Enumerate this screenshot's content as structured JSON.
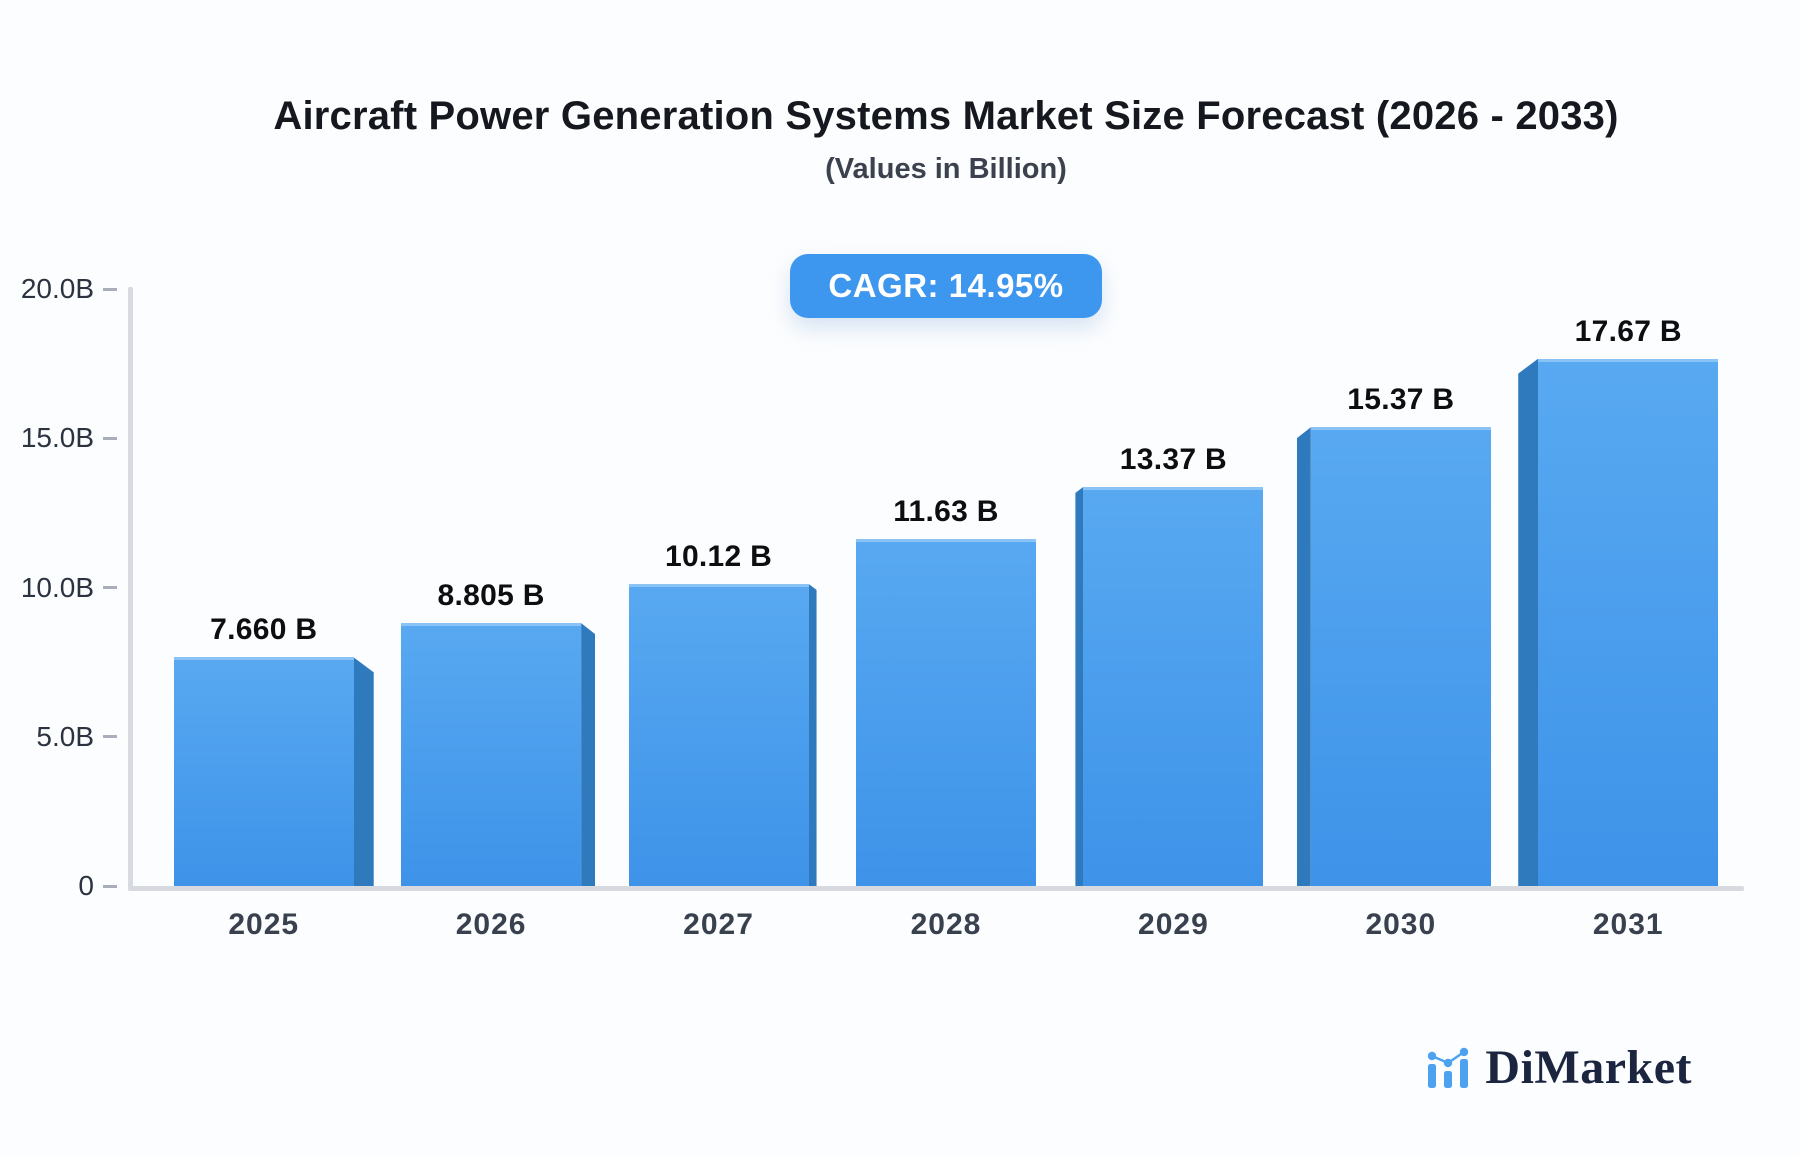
{
  "header": {
    "title": "Aircraft Power Generation Systems Market Size Forecast (2026 - 2033)",
    "subtitle": "(Values in Billion)"
  },
  "badge": {
    "label": "CAGR: 14.95%"
  },
  "chart_data": {
    "type": "bar",
    "title": "Aircraft Power Generation Systems Market Size Forecast (2026 - 2033)",
    "subtitle": "(Values in Billion)",
    "categories": [
      "2025",
      "2026",
      "2027",
      "2028",
      "2029",
      "2030",
      "2031"
    ],
    "values": [
      7.66,
      8.805,
      10.12,
      11.63,
      13.37,
      15.37,
      17.67
    ],
    "value_labels": [
      "7.660 B",
      "8.805 B",
      "10.12 B",
      "11.63 B",
      "13.37 B",
      "15.37 B",
      "17.67 B"
    ],
    "xlabel": "",
    "ylabel": "",
    "ylim": [
      0,
      20
    ],
    "ytick_labels": [
      "20.0B",
      "15.0B",
      "10.0B",
      "5.0B",
      "0"
    ],
    "ytick_values": [
      20,
      15,
      10,
      5,
      0
    ],
    "grid": false,
    "legend": false,
    "annotation": "CAGR: 14.95%"
  },
  "logo": {
    "text": "DiMarket",
    "icon": "mini-bar-chart-icon"
  },
  "colors": {
    "bar_face_top": "#58a9f1",
    "bar_face_bottom": "#3e93e9",
    "bar_side": "#2e7abd",
    "badge_bg": "#3e97ee",
    "badge_text": "#ffffff",
    "axis": "#d7dade",
    "title_text": "#15181e",
    "value_label_text": "#0c0e11",
    "year_label_text": "#39414e",
    "logo_text": "#1b2540",
    "logo_icon": "#4da2f0"
  }
}
